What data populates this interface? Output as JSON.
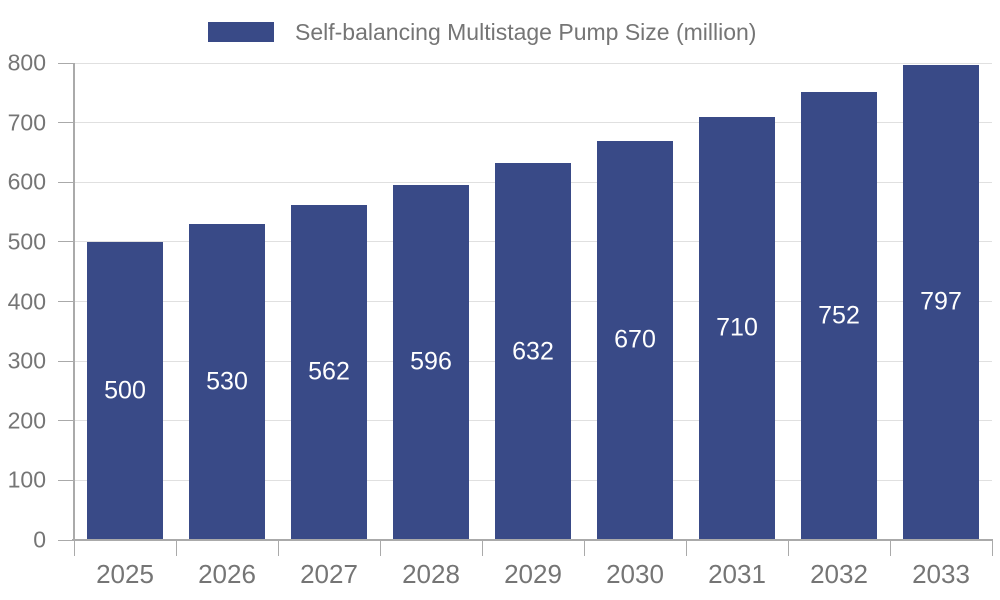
{
  "chart_data": {
    "type": "bar",
    "title": "",
    "legend": "Self-balancing Multistage Pump Size (million)",
    "legend_position": "top",
    "categories": [
      "2025",
      "2026",
      "2027",
      "2028",
      "2029",
      "2030",
      "2031",
      "2032",
      "2033"
    ],
    "series": [
      {
        "name": "Self-balancing Multistage Pump Size (million)",
        "values": [
          500,
          530,
          562,
          596,
          632,
          670,
          710,
          752,
          797
        ]
      }
    ],
    "xlabel": "",
    "ylabel": "",
    "ylim": [
      0,
      800
    ],
    "y_ticks": [
      0,
      100,
      200,
      300,
      400,
      500,
      600,
      700,
      800
    ],
    "grid": true,
    "bar_labels_shown": true,
    "colors": {
      "bar": "#394a87",
      "bar_label": "#ffffff",
      "grid_line": "#e0e0e0",
      "axis_line": "#aaaaaa",
      "tick_label": "#757575",
      "legend_text": "#757575",
      "background": "#ffffff"
    }
  }
}
